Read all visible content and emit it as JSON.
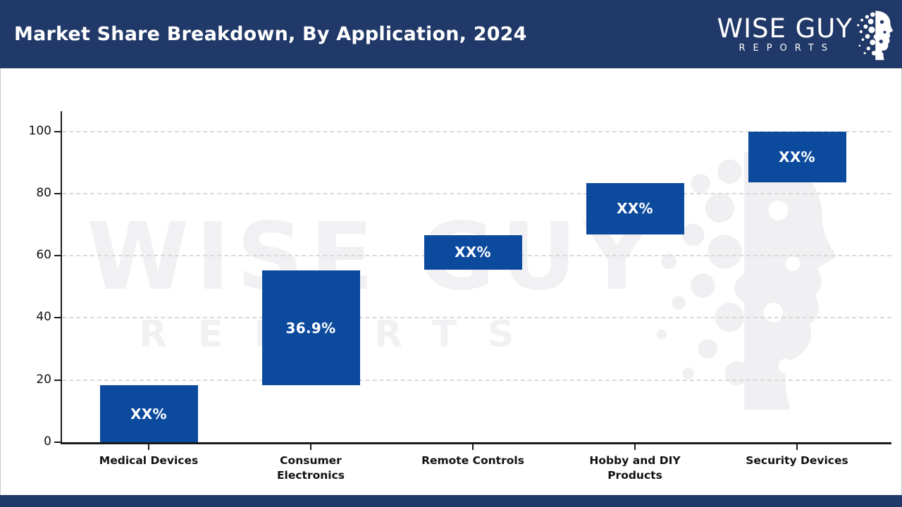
{
  "header": {
    "title": "Market Share Breakdown, By Application, 2024",
    "logo": {
      "line1": "WISE GUY",
      "line2": "REPORTS"
    }
  },
  "watermark": {
    "line1": "WISE GUY",
    "line2": "REPORTS"
  },
  "colors": {
    "header_bg": "#213968",
    "footer_bg": "#213968",
    "bar": "#0c4a9e",
    "gridline": "#d9d9d9",
    "axis": "#1a1a1a",
    "watermark": "#f1f1f4",
    "bar_label_text": "#ffffff"
  },
  "chart_data": {
    "type": "bar",
    "subtype": "waterfall",
    "title": "Market Share Breakdown, By Application, 2024",
    "xlabel": "",
    "ylabel": "",
    "ylim": [
      0,
      105
    ],
    "yticks": [
      0,
      20,
      40,
      60,
      80,
      100
    ],
    "grid": "horizontal-dashed",
    "legend": "none",
    "categories": [
      "Medical Devices",
      "Consumer Electronics",
      "Remote Controls",
      "Hobby and DIY Products",
      "Security Devices"
    ],
    "bars": [
      {
        "category": "Medical Devices",
        "start": 0,
        "end": 18.3,
        "label": "XX%"
      },
      {
        "category": "Consumer Electronics",
        "start": 18.3,
        "end": 55.2,
        "label": "36.9%"
      },
      {
        "category": "Remote Controls",
        "start": 55.5,
        "end": 66.7,
        "label": "XX%"
      },
      {
        "category": "Hobby and DIY Products",
        "start": 66.9,
        "end": 83.4,
        "label": "XX%"
      },
      {
        "category": "Security Devices",
        "start": 83.6,
        "end": 100,
        "label": "XX%"
      }
    ]
  }
}
